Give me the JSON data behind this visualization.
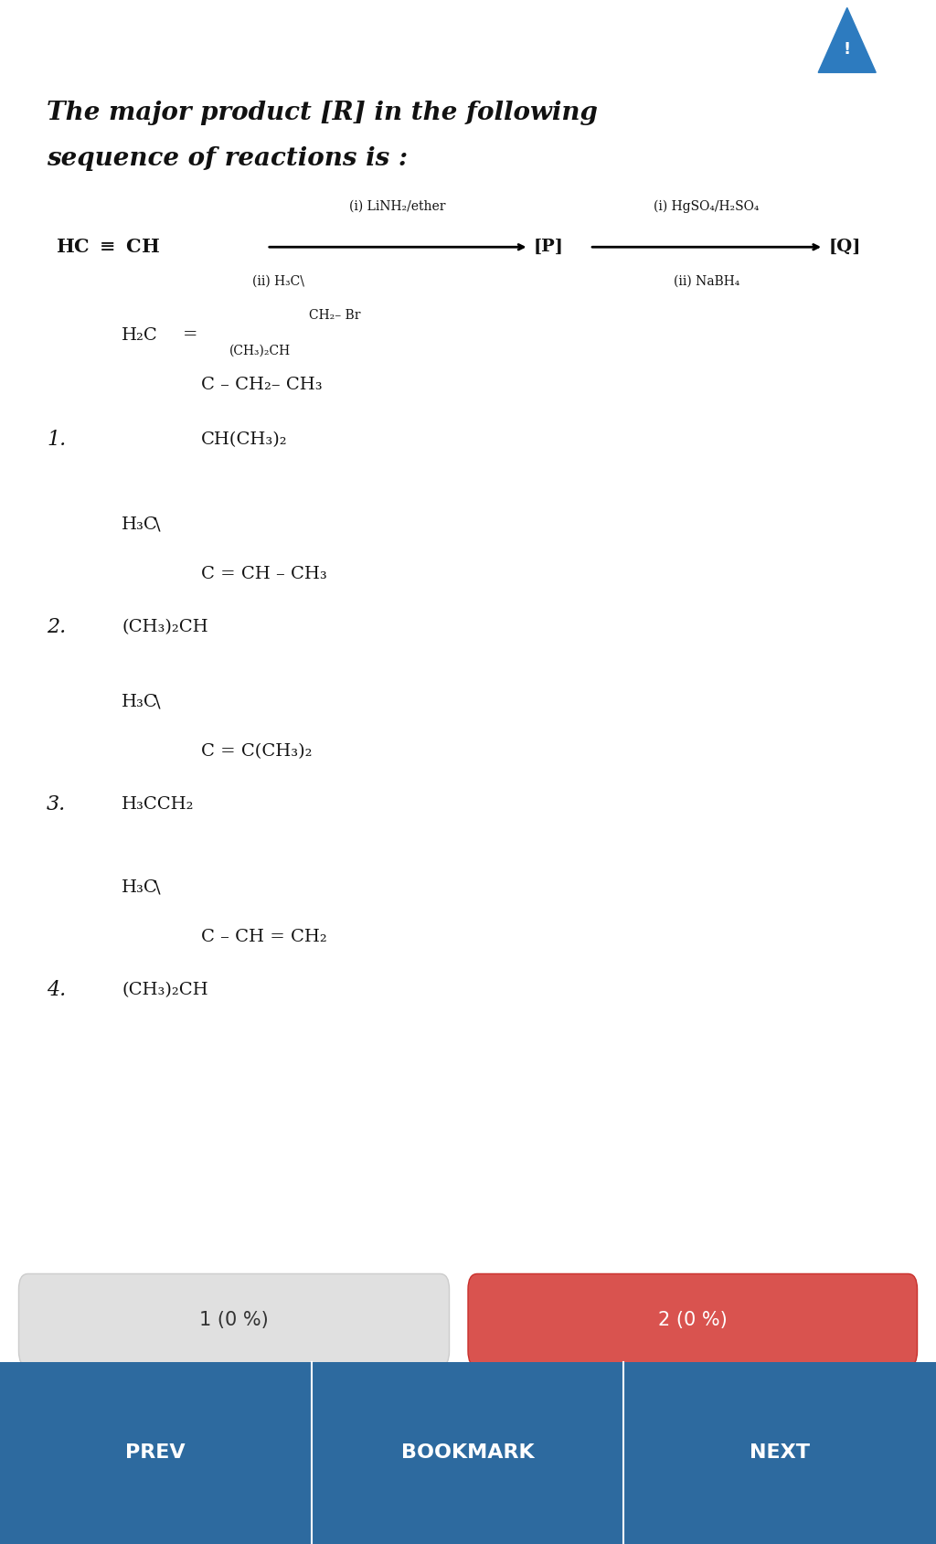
{
  "bg_color": "#ffffff",
  "title_line1": "The major product [R] in the following",
  "title_line2": "sequence of reactions is :",
  "warning_icon_color": "#2d7bbf",
  "p_label": "[P]",
  "q_label": "[Q]",
  "btn1_text": "1 (0 %)",
  "btn1_color": "#e0e0e0",
  "btn2_text": "2 (0 %)",
  "btn2_color": "#d9534f",
  "nav_color": "#2d6a9f",
  "nav_prev": "PREV",
  "nav_bookmark": "BOOKMARK",
  "nav_next": "NEXT"
}
